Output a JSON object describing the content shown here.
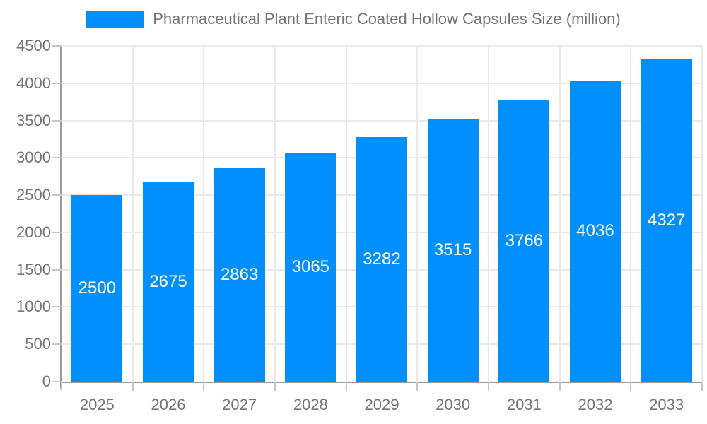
{
  "legend": {
    "label": "Pharmaceutical Plant Enteric Coated Hollow Capsules Size (million)"
  },
  "colors": {
    "bar": "#008FFB",
    "value_label": "#ffffff",
    "axis_text": "#757575",
    "axis_line": "#9b9b9b",
    "gridline": "#e9e9e9"
  },
  "chart_data": {
    "type": "bar",
    "title": "Pharmaceutical Plant Enteric Coated Hollow Capsules Size (million)",
    "categories": [
      "2025",
      "2026",
      "2027",
      "2028",
      "2029",
      "2030",
      "2031",
      "2032",
      "2033"
    ],
    "series": [
      {
        "name": "Pharmaceutical Plant Enteric Coated Hollow Capsules Size (million)",
        "values": [
          2500,
          2675,
          2863,
          3065,
          3282,
          3515,
          3766,
          4036,
          4327
        ]
      }
    ],
    "value_labels_shown": true,
    "value_label_position": "center-of-bar",
    "xlabel": "",
    "ylabel": "",
    "ylim": [
      0,
      4500
    ],
    "yticks": [
      0,
      500,
      1000,
      1500,
      2000,
      2500,
      3000,
      3500,
      4000,
      4500
    ],
    "grid": "both",
    "legend_position": "top"
  }
}
